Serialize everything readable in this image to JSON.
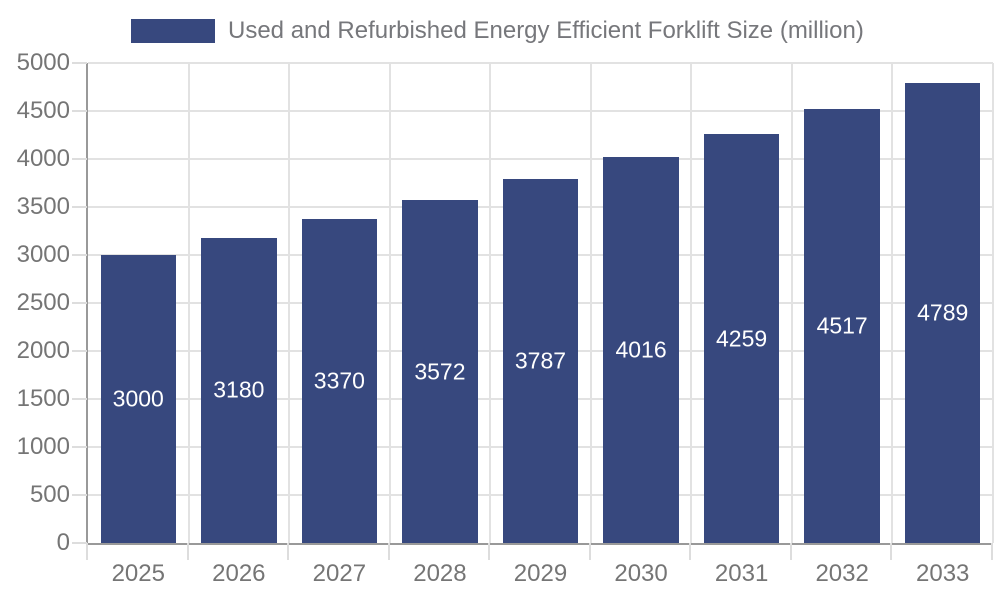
{
  "chart_data": {
    "type": "bar",
    "title": "Used and Refurbished Energy Efficient Forklift Size (million)",
    "legend": [
      "Used and Refurbished Energy Efficient Forklift Size (million)"
    ],
    "legend_position": "top",
    "categories": [
      "2025",
      "2026",
      "2027",
      "2028",
      "2029",
      "2030",
      "2031",
      "2032",
      "2033"
    ],
    "values": [
      3000,
      3180,
      3370,
      3572,
      3787,
      4016,
      4259,
      4517,
      4789
    ],
    "xlabel": "",
    "ylabel": "",
    "ylim": [
      0,
      5000
    ],
    "ytick_step": 500,
    "ytick_labels": [
      "0",
      "500",
      "1000",
      "1500",
      "2000",
      "2500",
      "3000",
      "3500",
      "4000",
      "4500",
      "5000"
    ],
    "grid": true,
    "bar_labels_visible": true,
    "colors": {
      "bar": "#37487E",
      "grid": "#E2E2E2",
      "axis": "#999999",
      "tick": "#DDDDDD",
      "axis_label": "#757575",
      "legend_text": "#76777B",
      "bar_label": "#FFFFFF"
    }
  }
}
